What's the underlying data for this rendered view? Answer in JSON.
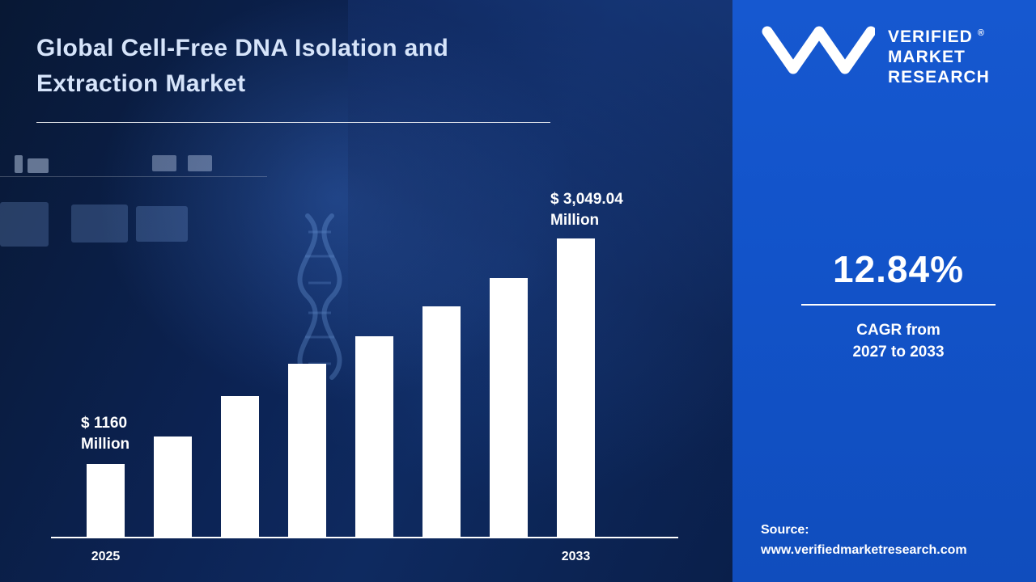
{
  "title": {
    "line1": "Global Cell-Free DNA Isolation and",
    "line2": "Extraction Market"
  },
  "brand": {
    "name_lines": [
      "VERIFIED",
      "MARKET",
      "RESEARCH"
    ],
    "registered": "®"
  },
  "cagr": {
    "value": "12.84%",
    "line1": "CAGR from",
    "line2": "2027 to 2033"
  },
  "source": {
    "label": "Source:",
    "url": "www.verifiedmarketresearch.com"
  },
  "chart_data": {
    "type": "bar",
    "title": "Global Cell-Free DNA Isolation and Extraction Market",
    "categories": [
      "2025",
      "",
      "",
      "",
      "",
      "",
      "",
      "2033"
    ],
    "x_tick_labels": [
      "2025",
      "2033"
    ],
    "values": [
      1160,
      1390,
      1730,
      2000,
      2230,
      2480,
      2720,
      3049.04
    ],
    "unit": "Million",
    "currency": "$",
    "first_value_label": "$ 1160 Million",
    "last_value_label": "$ 3,049.04 Million",
    "xlabel": "",
    "ylabel": "",
    "grid": false,
    "legend": false,
    "bar_color": "#ffffff",
    "annotations": {
      "start": {
        "line1": "$ 1160",
        "line2": "Million"
      },
      "end": {
        "line1": "$ 3,049.04",
        "line2": "Million"
      }
    }
  },
  "colors": {
    "left_background": "#0b1d44",
    "right_panel": "#1253c9",
    "bar": "#ffffff",
    "title_text": "#d6e4fa",
    "text": "#ffffff"
  }
}
